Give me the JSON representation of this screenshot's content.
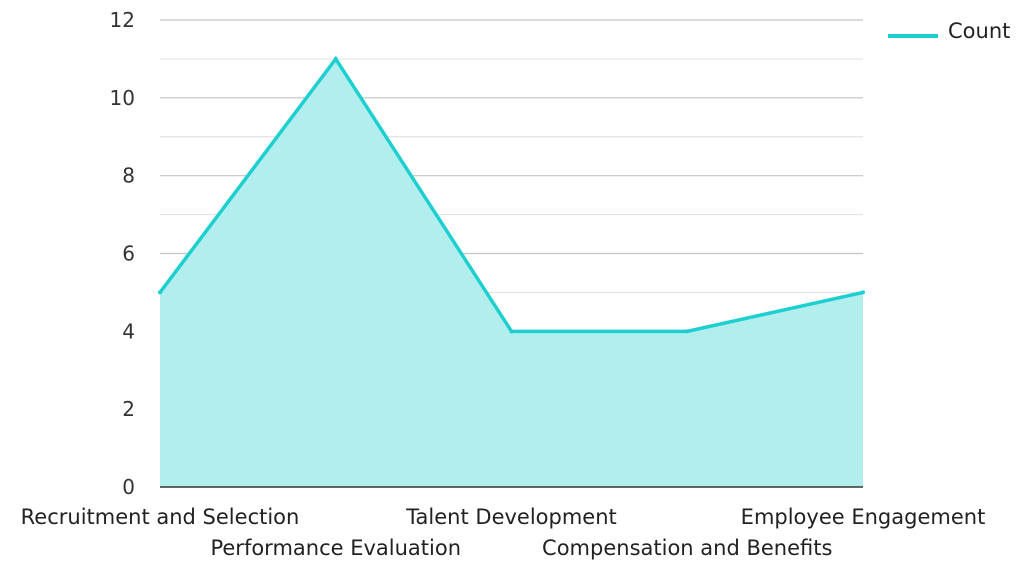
{
  "chart_data": {
    "type": "area",
    "title": "",
    "xlabel": "",
    "ylabel": "",
    "categories": [
      "Recruitment and Selection",
      "Performance Evaluation",
      "Talent Development",
      "Compensation and Benefits",
      "Employee Engagement"
    ],
    "series": [
      {
        "name": "Count",
        "values": [
          5,
          11,
          4,
          4,
          5
        ]
      }
    ],
    "ylim": [
      0,
      12
    ],
    "yticks": [
      0,
      2,
      4,
      6,
      8,
      10,
      12
    ],
    "ytick_labels": [
      "0",
      "2",
      "4",
      "6",
      "8",
      "10",
      "12"
    ],
    "grid": true,
    "legend_position": "top-right",
    "colors": {
      "line": "#1ecfcf",
      "fill": "#b2eeee",
      "grid": "#c8c8c8",
      "axis": "#333333"
    }
  }
}
